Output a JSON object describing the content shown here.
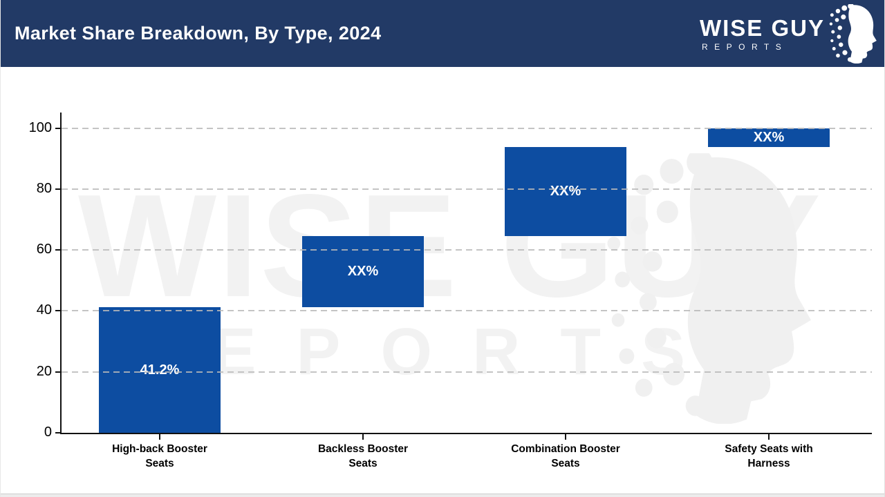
{
  "header": {
    "title": "Market Share Breakdown, By Type, 2024",
    "logo": {
      "name": "WISE GUY",
      "sub": "REPORTS"
    }
  },
  "watermark": {
    "name": "WISE GUY",
    "sub": "REPORTS"
  },
  "chart_data": {
    "type": "bar",
    "subtype": "waterfall",
    "title": "Market Share Breakdown, By Type, 2024",
    "categories": [
      "High-back Booster Seats",
      "Backless Booster Seats",
      "Combination Booster Seats",
      "Safety Seats with Harness"
    ],
    "segments": [
      {
        "category": "High-back Booster Seats",
        "start": 0,
        "end": 41.2,
        "label": "41.2%"
      },
      {
        "category": "Backless Booster Seats",
        "start": 41.2,
        "end": 64.6,
        "label": "XX%"
      },
      {
        "category": "Combination Booster Seats",
        "start": 64.6,
        "end": 93.8,
        "label": "XX%"
      },
      {
        "category": "Safety Seats with Harness",
        "start": 93.8,
        "end": 100,
        "label": "XX%"
      }
    ],
    "xlabel": "",
    "ylabel": "",
    "ylim": [
      0,
      100
    ],
    "yticks": [
      0,
      20,
      40,
      60,
      80,
      100
    ],
    "grid": "horizontal-dashed",
    "legend": "none",
    "bar_color": "#0D4DA1"
  },
  "colors": {
    "header_bg": "#223A66",
    "bar": "#0D4DA1",
    "watermark": "#F2F2F2"
  }
}
